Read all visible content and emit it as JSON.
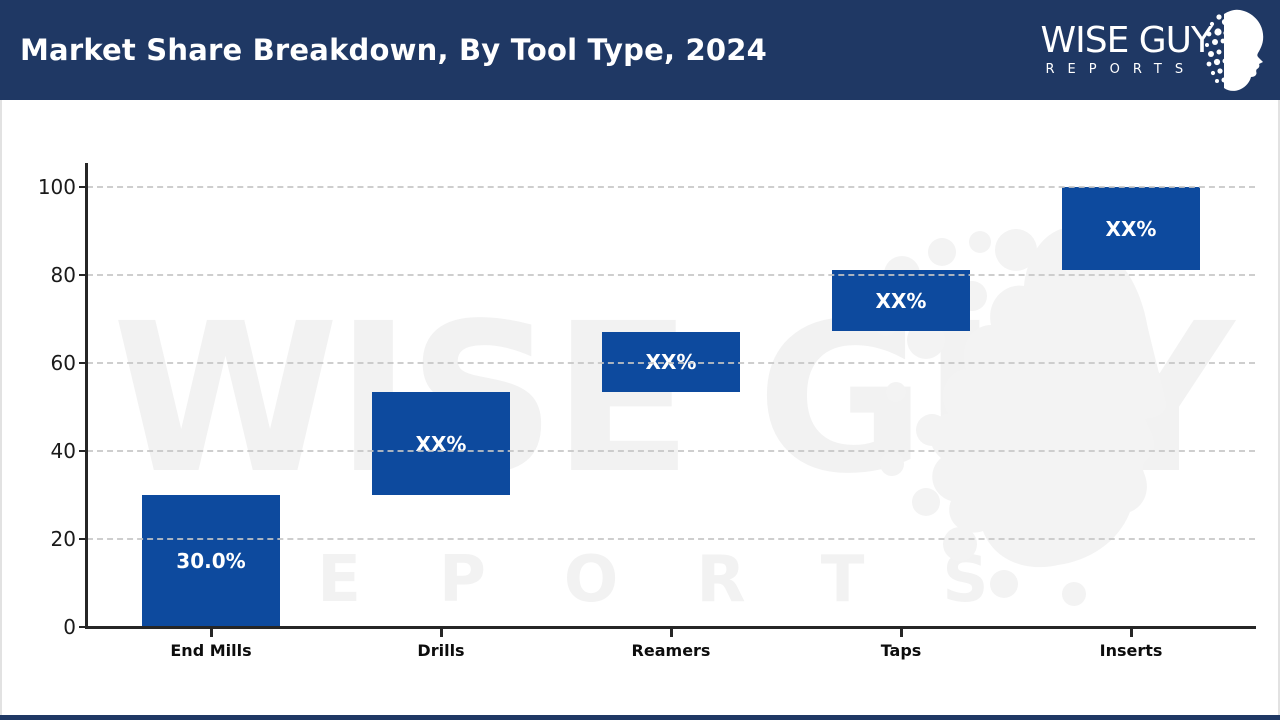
{
  "header": {
    "title": "Market Share Breakdown, By Tool Type, 2024",
    "logo": {
      "line1": "WISE GUY",
      "line2": "REPORTS"
    }
  },
  "watermark": {
    "line1": "WISE GUY",
    "line2": "REPORTS"
  },
  "chart_data": {
    "type": "bar",
    "subtype": "waterfall",
    "title": "Market Share Breakdown, By Tool Type, 2024",
    "categories": [
      "End Mills",
      "Drills",
      "Reamers",
      "Taps",
      "Inserts"
    ],
    "segments": [
      {
        "category": "End Mills",
        "start": 0,
        "end": 30.0,
        "label": "30.0%"
      },
      {
        "category": "Drills",
        "start": 30.0,
        "end": 53.4,
        "label": "XX%"
      },
      {
        "category": "Reamers",
        "start": 53.5,
        "end": 67.0,
        "label": "XX%"
      },
      {
        "category": "Taps",
        "start": 67.3,
        "end": 81.1,
        "label": "XX%"
      },
      {
        "category": "Inserts",
        "start": 81.1,
        "end": 100.0,
        "label": "XX%"
      }
    ],
    "yticks": [
      0,
      20,
      40,
      60,
      80,
      100
    ],
    "ylim": [
      0,
      105.5
    ],
    "xlabel": "",
    "ylabel": "",
    "grid": "horizontal-dashed",
    "legend": "none",
    "bar_color": "#0d4a9e",
    "bar_label_color": "#ffffff"
  },
  "colors": {
    "header_bg": "#1f3864",
    "footer_bg": "#1f3864",
    "bar": "#0d4a9e",
    "axis": "#262626",
    "gridline": "#c5c5c5",
    "watermark": "#f2f2f2"
  }
}
